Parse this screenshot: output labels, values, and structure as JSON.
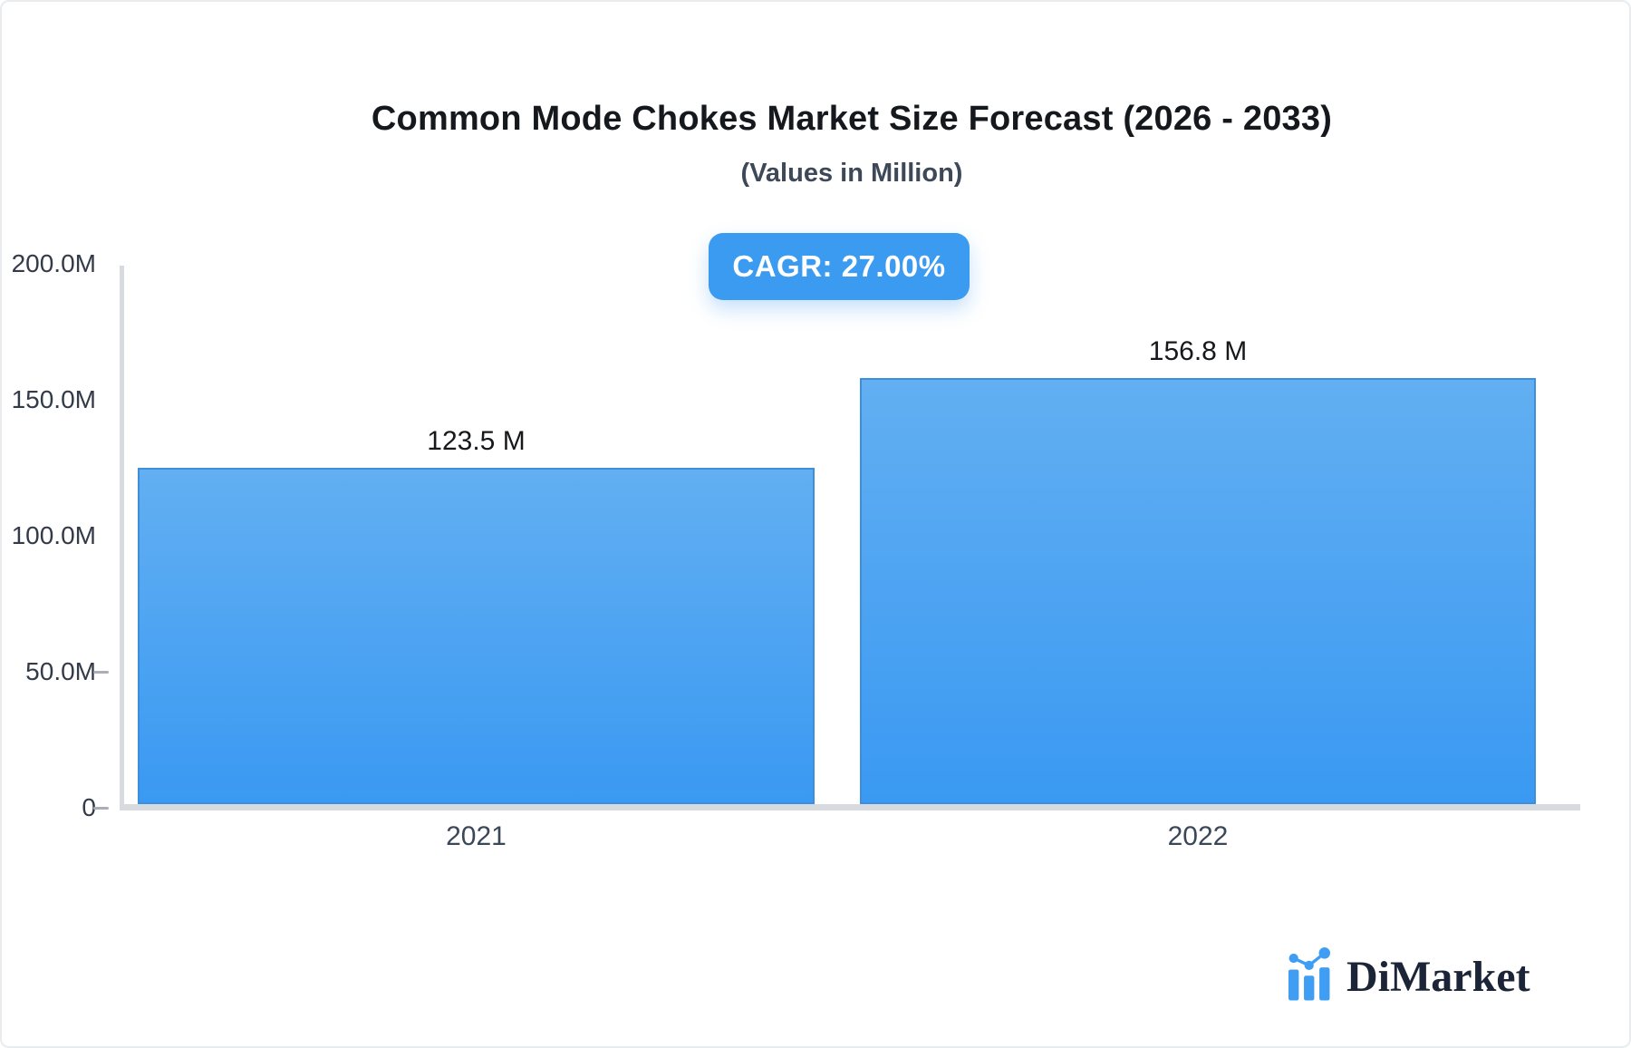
{
  "header": {
    "title": "Common Mode Chokes Market Size Forecast (2026 - 2033)",
    "subtitle": "(Values in Million)",
    "cagr_badge": "CAGR: 27.00%"
  },
  "chart_data": {
    "type": "bar",
    "title": "Common Mode Chokes Market Size Forecast (2026 - 2033)",
    "subtitle": "(Values in Million)",
    "annotation": "CAGR: 27.00%",
    "categories": [
      "2021",
      "2022"
    ],
    "values": [
      123.5,
      156.8
    ],
    "value_labels": [
      "123.5 M",
      "156.8 M"
    ],
    "unit": "Million",
    "ylim": [
      0,
      200
    ],
    "yticks": [
      {
        "label": "200.0M",
        "value": 200,
        "dash": false
      },
      {
        "label": "150.0M",
        "value": 150,
        "dash": false
      },
      {
        "label": "100.0M",
        "value": 100,
        "dash": false
      },
      {
        "label": "50.0M",
        "value": 50,
        "dash": true
      },
      {
        "label": "0",
        "value": 0,
        "dash": true
      }
    ],
    "grid": false,
    "legend": null
  },
  "logo": {
    "text": "DiMarket",
    "icon": "bar-chart-with-trend-line"
  },
  "colors": {
    "bar_top": "#62aff2",
    "bar_bottom": "#3a99f2",
    "bar_border": "#3e8fdb",
    "badge_bg": "#3b9bf1",
    "badge_text": "#ffffff",
    "axis_line": "#d7dbe0",
    "tick_dash": "#a9aeb8",
    "title_text": "#15181c",
    "subtitle_text": "#3d4858",
    "axis_label": "#333b49",
    "value_label": "#16181b",
    "logo_blue": "#3f9ef3",
    "logo_navy": "#1b2537"
  }
}
